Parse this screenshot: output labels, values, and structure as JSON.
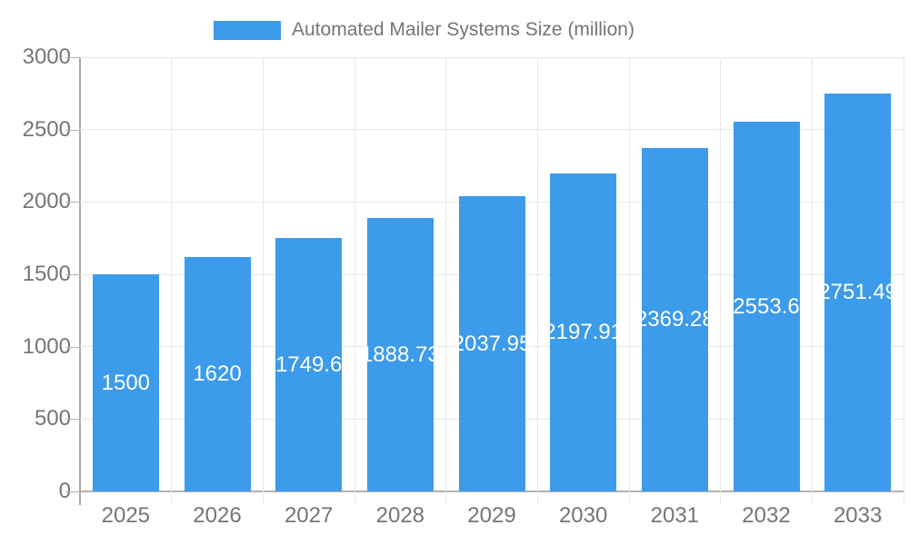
{
  "legend": {
    "label": "Automated Mailer Systems Size (million)",
    "swatch_color": "#3c9bea"
  },
  "chart_data": {
    "type": "bar",
    "title": "Automated Mailer Systems Size (million)",
    "xlabel": "",
    "ylabel": "",
    "categories": [
      "2025",
      "2026",
      "2027",
      "2028",
      "2029",
      "2030",
      "2031",
      "2032",
      "2033"
    ],
    "values": [
      1500,
      1620,
      1749.6,
      1888.73,
      2037.95,
      2197.91,
      2369.28,
      2553.6,
      2751.49
    ],
    "value_labels": [
      "1500",
      "1620",
      "1749.6",
      "1888.73",
      "2037.95",
      "2197.91",
      "2369.28",
      "2553.6",
      "2751.49"
    ],
    "ylim": [
      0,
      3000
    ],
    "yticks": [
      0,
      500,
      1000,
      1500,
      2000,
      2500,
      3000
    ],
    "grid": true,
    "legend_position": "top-center",
    "bar_color": "#3c9bea",
    "value_label_color": "#ffffff",
    "axis_text_color": "#757575",
    "gridline_color": "#e6e6e6",
    "axis_line_color": "#b3b3b3"
  }
}
